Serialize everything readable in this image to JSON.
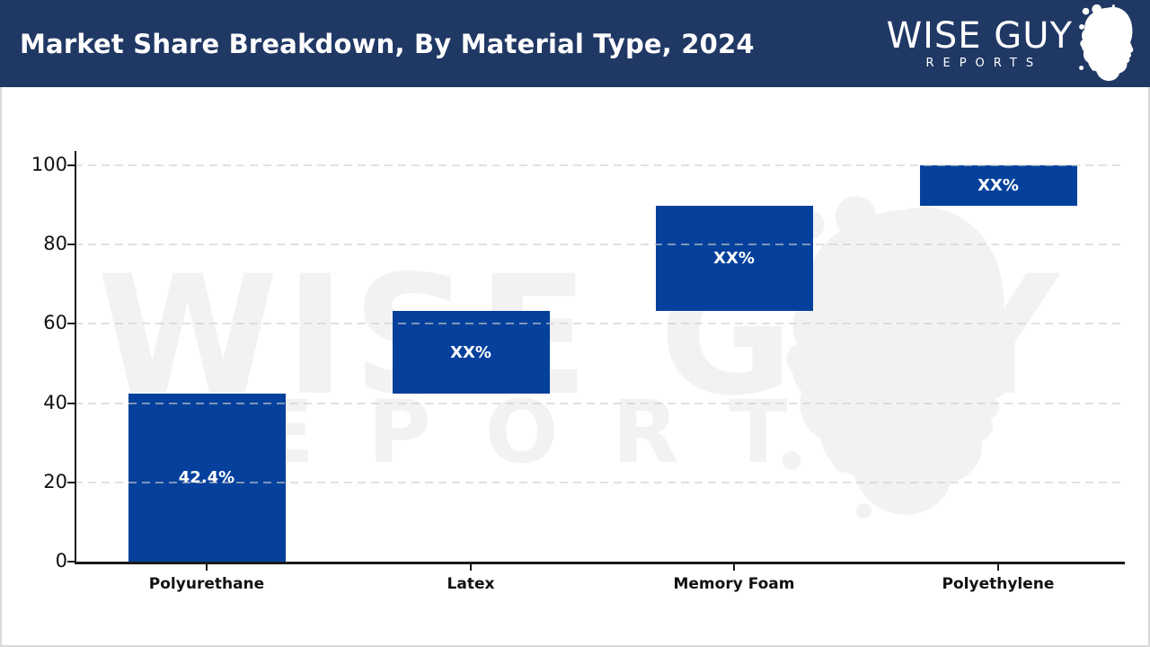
{
  "header": {
    "title": "Market Share Breakdown, By Material Type, 2024",
    "logo": {
      "brand_line1": "WISE GUY",
      "brand_line2": "REPORTS"
    }
  },
  "watermark": {
    "line1": "WISE GUY",
    "line2": "REPORTS"
  },
  "colors": {
    "header_bg": "#203864",
    "bar": "#05419c",
    "bar_label": "#ffffff",
    "axis": "#1a1a1a",
    "grid": "rgba(205,205,205,0.6)",
    "watermark": "#f2f2f2",
    "tick_text": "#111111"
  },
  "chart_data": {
    "type": "bar",
    "subtype": "waterfall",
    "title": "Market Share Breakdown, By Material Type, 2024",
    "categories": [
      "Polyurethane",
      "Latex",
      "Memory Foam",
      "Polyethylene"
    ],
    "segments": [
      {
        "category": "Polyurethane",
        "start": 0,
        "end": 42.4,
        "label": "42.4%"
      },
      {
        "category": "Latex",
        "start": 42.4,
        "end": 63.2,
        "label": "XX%"
      },
      {
        "category": "Memory Foam",
        "start": 63.2,
        "end": 89.8,
        "label": "XX%"
      },
      {
        "category": "Polyethylene",
        "start": 89.8,
        "end": 100,
        "label": "XX%"
      }
    ],
    "xlabel": "",
    "ylabel": "",
    "ylim": [
      0,
      100
    ],
    "yticks": [
      0,
      20,
      40,
      60,
      80,
      100
    ],
    "grid": "horizontal-dashed",
    "legend": "none",
    "unit": "%"
  }
}
